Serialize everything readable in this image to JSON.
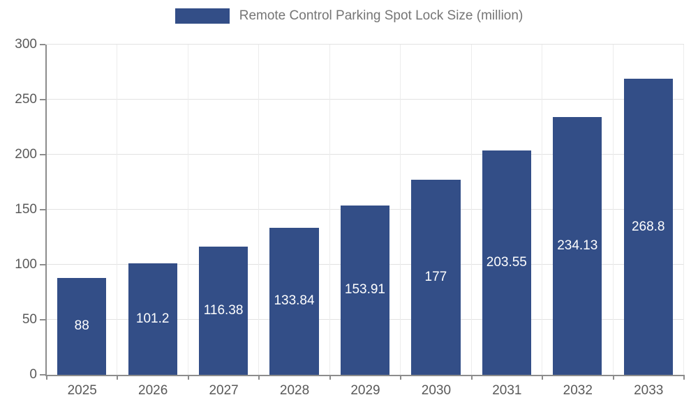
{
  "legend": {
    "label": "Remote Control Parking Spot Lock Size (million)"
  },
  "colors": {
    "bar": "#334e87",
    "bar_label": "#ffffff",
    "grid": "#e2e2e2",
    "axis": "#8c8c8c",
    "tick_text": "#595959",
    "legend_text": "#757575"
  },
  "chart_data": {
    "type": "bar",
    "title": "Remote Control Parking Spot Lock Size (million)",
    "categories": [
      "2025",
      "2026",
      "2027",
      "2028",
      "2029",
      "2030",
      "2031",
      "2032",
      "2033"
    ],
    "values": [
      88,
      101.2,
      116.38,
      133.84,
      153.91,
      177,
      203.55,
      234.13,
      268.8
    ],
    "value_labels": [
      "88",
      "101.2",
      "116.38",
      "133.84",
      "153.91",
      "177",
      "203.55",
      "234.13",
      "268.8"
    ],
    "xlabel": "",
    "ylabel": "",
    "ylim": [
      0,
      300
    ],
    "yticks": [
      0,
      50,
      100,
      150,
      200,
      250,
      300
    ],
    "grid": true,
    "legend_position": "top-center",
    "value_label_position": "inside-center"
  }
}
